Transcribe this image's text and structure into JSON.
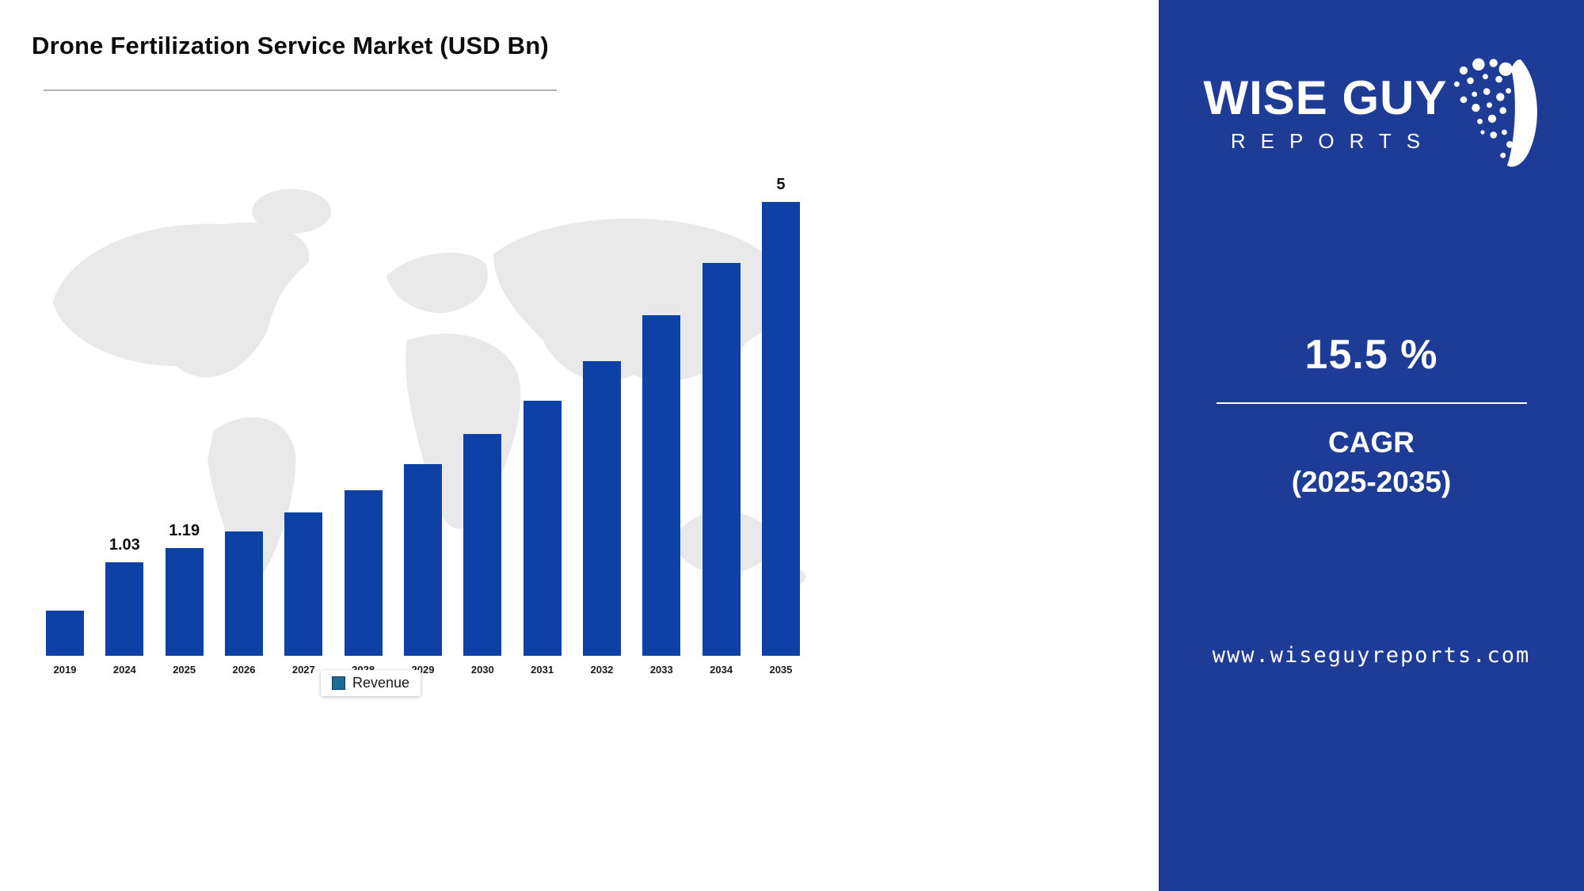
{
  "header": {
    "title": "Drone Fertilization Service Market (USD Bn)"
  },
  "chart_data": {
    "type": "bar",
    "title": "Drone Fertilization Service Market (USD Bn)",
    "categories": [
      "2019",
      "2024",
      "2025",
      "2026",
      "2027",
      "2028",
      "2029",
      "2030",
      "2031",
      "2032",
      "2033",
      "2034",
      "2035"
    ],
    "values": [
      0.5,
      1.03,
      1.19,
      1.37,
      1.58,
      1.82,
      2.11,
      2.44,
      2.81,
      3.25,
      3.75,
      4.33,
      5
    ],
    "value_labels": [
      "",
      "1.03",
      "1.19",
      "",
      "",
      "",
      "",
      "",
      "",
      "",
      "",
      "",
      "5"
    ],
    "ylim": [
      0,
      5.35
    ],
    "xlabel": "",
    "ylabel": "",
    "grid": false,
    "bar_color": "#0d41a5",
    "legend_position": "bottom",
    "legend": {
      "label": "Revenue",
      "swatch_color": "#1c6d93"
    }
  },
  "panel": {
    "background_color": "#1e3c96",
    "brand_line1": "WISE GUY",
    "brand_line2": "REPORTS",
    "logo_icon": "dotted-head-logo",
    "cagr_value": "15.5 %",
    "cagr_label": "CAGR",
    "cagr_period": "(2025-2035)",
    "website": "www.wiseguyreports.com"
  }
}
